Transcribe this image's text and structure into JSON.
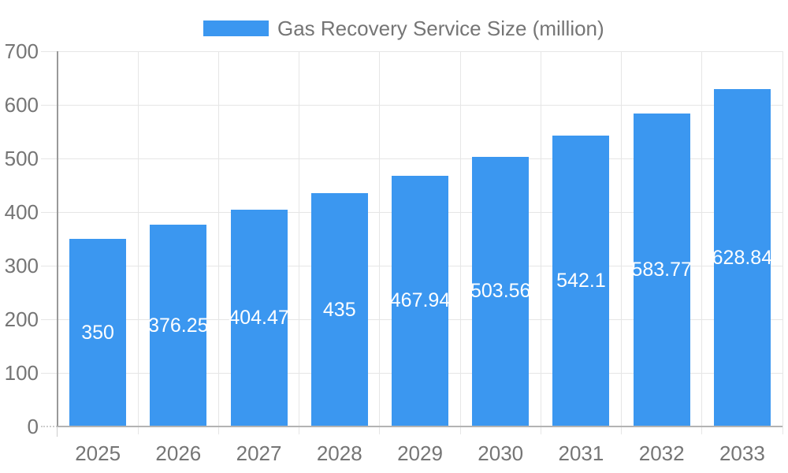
{
  "chart_data": {
    "type": "bar",
    "title": "Gas Recovery Service Size (million)",
    "categories": [
      "2025",
      "2026",
      "2027",
      "2028",
      "2029",
      "2030",
      "2031",
      "2032",
      "2033"
    ],
    "values": [
      350,
      376.25,
      404.47,
      435,
      467.94,
      503.56,
      542.1,
      583.77,
      628.84
    ],
    "value_labels": [
      "350",
      "376.25",
      "404.47",
      "435",
      "467.94",
      "503.56",
      "542.1",
      "583.77",
      "628.84"
    ],
    "xlabel": "",
    "ylabel": "",
    "ylim": [
      0,
      700
    ],
    "yticks": [
      0,
      100,
      200,
      300,
      400,
      500,
      600,
      700
    ],
    "legend_position": "top-center",
    "grid": true,
    "colors": {
      "bar": "#3b97f0",
      "value_label": "#ffffff",
      "axis_text": "#757575",
      "legend_text": "#757575",
      "gridline": "#e6e6e6",
      "axis_line": "#999999",
      "axis_line_tail": "#cccccc",
      "baseline": "#b3b3b3",
      "zero_tick": "#cccccc",
      "background": "#ffffff"
    }
  }
}
